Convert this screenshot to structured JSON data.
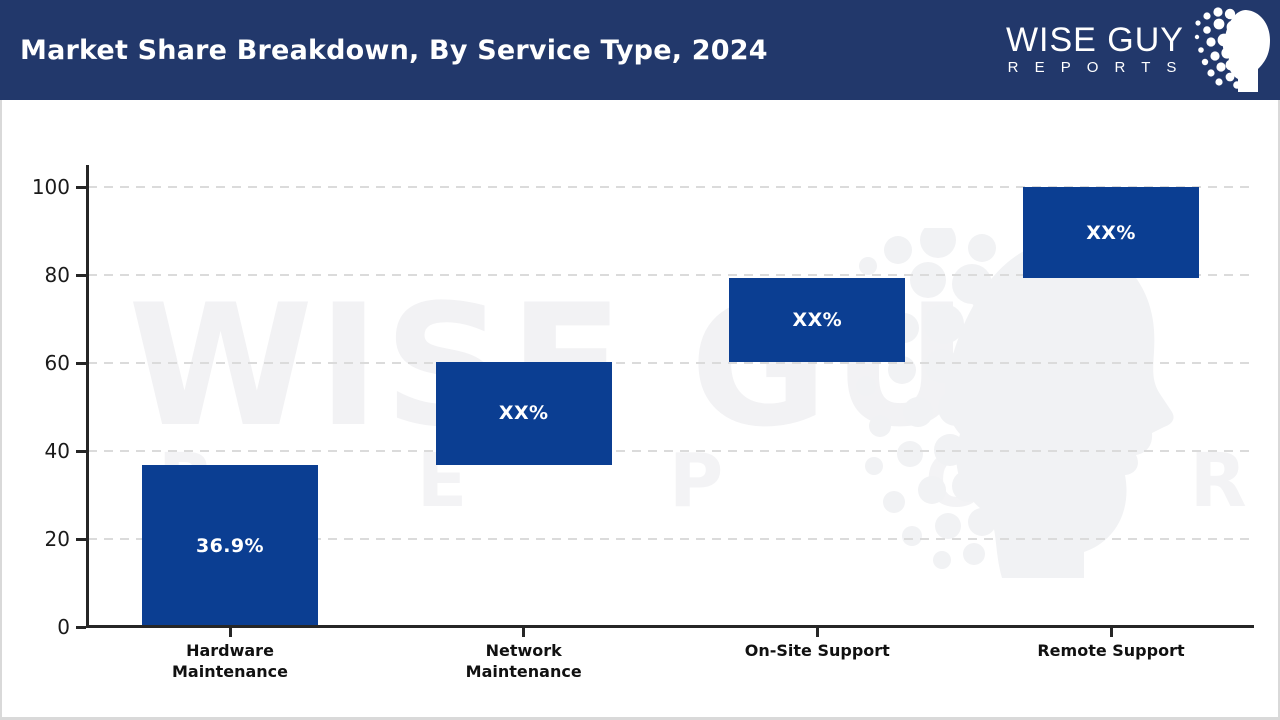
{
  "header": {
    "title": "Market Share Breakdown, By Service Type, 2024",
    "background_color": "#22386B",
    "logo": {
      "line1": "WISE GUY",
      "line2": "R E P O R T S"
    }
  },
  "watermark": {
    "line1": "WISE GUY",
    "line2": "R E P O R T S"
  },
  "chart_data": {
    "type": "bar",
    "subtype": "waterfall",
    "title": "Market Share Breakdown, By Service Type, 2024",
    "categories": [
      "Hardware\nMaintenance",
      "Network\nMaintenance",
      "On-Site Support",
      "Remote Support"
    ],
    "segments": [
      {
        "category": "Hardware Maintenance",
        "start": 0,
        "end": 36.9,
        "label": "36.9%"
      },
      {
        "category": "Network Maintenance",
        "start": 36.9,
        "end": 60.2,
        "label": "XX%"
      },
      {
        "category": "On-Site Support",
        "start": 60.2,
        "end": 79.3,
        "label": "XX%"
      },
      {
        "category": "Remote Support",
        "start": 79.3,
        "end": 100,
        "label": "XX%"
      }
    ],
    "xlabel": "",
    "ylabel": "",
    "yticks": [
      0,
      20,
      40,
      60,
      80,
      100
    ],
    "ylim": [
      0,
      105
    ],
    "grid": "horizontal dashed",
    "legend": "none",
    "colors": {
      "bar": "#0B3E92",
      "bar_label": "#FFFFFF",
      "axis": "#262626",
      "gridline": "#DBDBDB",
      "header_bg": "#22386B",
      "watermark": "#F2F2F4"
    }
  }
}
